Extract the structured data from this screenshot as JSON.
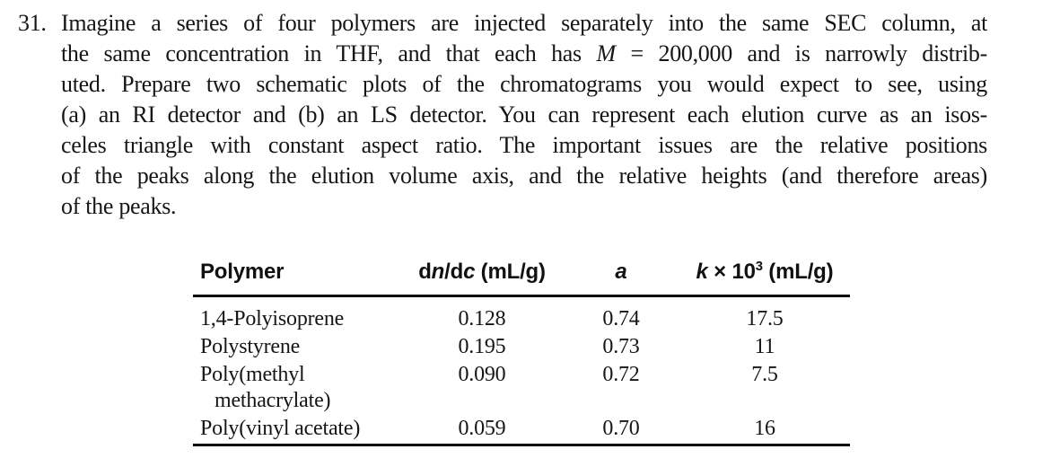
{
  "problem": {
    "number": "31.",
    "lines": [
      {
        "justify": true,
        "segments": [
          {
            "t": "Imagine a series of four polymers are injected separately into the same SEC column, at"
          }
        ]
      },
      {
        "justify": true,
        "segments": [
          {
            "t": "the same concentration in THF, and that each has "
          },
          {
            "t": "M",
            "i": true
          },
          {
            "t": " = 200,000 and is narrowly distrib-"
          }
        ]
      },
      {
        "justify": true,
        "segments": [
          {
            "t": "uted. Prepare two schematic plots of the chromatograms you would expect to see, using"
          }
        ]
      },
      {
        "justify": true,
        "segments": [
          {
            "t": "(a) an RI detector and (b) an LS detector. You can represent each elution curve as an isos-"
          }
        ]
      },
      {
        "justify": true,
        "segments": [
          {
            "t": "celes triangle with constant aspect ratio. The important issues are the relative positions"
          }
        ]
      },
      {
        "justify": true,
        "segments": [
          {
            "t": "of the peaks along the elution volume axis, and the relative heights (and therefore areas)"
          }
        ]
      },
      {
        "justify": false,
        "segments": [
          {
            "t": "of the peaks."
          }
        ]
      }
    ]
  },
  "table": {
    "headers": [
      {
        "id": "polymer",
        "align": "left",
        "segments": [
          {
            "t": "Polymer"
          }
        ]
      },
      {
        "id": "dndc",
        "align": "center",
        "segments": [
          {
            "t": "d"
          },
          {
            "t": "n",
            "i": true
          },
          {
            "t": "/d"
          },
          {
            "t": "c",
            "i": true
          },
          {
            "t": " (mL/g)"
          }
        ]
      },
      {
        "id": "a",
        "align": "center",
        "segments": [
          {
            "t": "a",
            "i": true
          }
        ]
      },
      {
        "id": "k",
        "align": "center",
        "segments": [
          {
            "t": "k",
            "i": true
          },
          {
            "t": " × 10"
          },
          {
            "t": "3",
            "sup": true
          },
          {
            "t": " (mL/g)"
          }
        ]
      }
    ],
    "rows": [
      {
        "name_lines": [
          "1,4-Polyisoprene"
        ],
        "dndc": "0.128",
        "a": "0.74",
        "k": "17.5"
      },
      {
        "name_lines": [
          "Polystyrene"
        ],
        "dndc": "0.195",
        "a": "0.73",
        "k": "11"
      },
      {
        "name_lines": [
          "Poly(methyl",
          "methacrylate)"
        ],
        "dndc": "0.090",
        "a": "0.72",
        "k": "7.5"
      },
      {
        "name_lines": [
          "Poly(vinyl acetate)"
        ],
        "dndc": "0.059",
        "a": "0.70",
        "k": "16"
      }
    ]
  }
}
